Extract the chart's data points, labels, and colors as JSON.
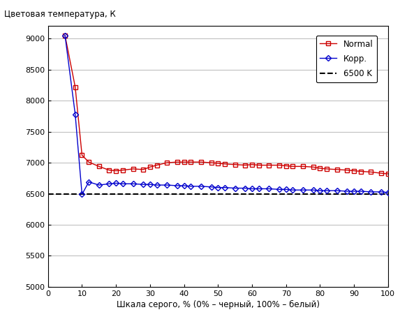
{
  "title": "Цветовая температура, К",
  "title_x": "Шкала серого, % (0% – черный, 100% – белый)",
  "ylim": [
    5000,
    9200
  ],
  "xlim": [
    0,
    100
  ],
  "yticks": [
    5000,
    5500,
    6000,
    6500,
    7000,
    7500,
    8000,
    8500,
    9000
  ],
  "xticks": [
    0,
    10,
    20,
    30,
    40,
    50,
    60,
    70,
    80,
    90,
    100
  ],
  "ref_line": 6500,
  "normal_x": [
    5,
    8,
    10,
    12,
    15,
    18,
    20,
    22,
    25,
    28,
    30,
    32,
    35,
    38,
    40,
    42,
    45,
    48,
    50,
    52,
    55,
    58,
    60,
    62,
    65,
    68,
    70,
    72,
    75,
    78,
    80,
    82,
    85,
    88,
    90,
    92,
    95,
    98,
    100
  ],
  "normal_y": [
    9050,
    8220,
    7120,
    7010,
    6940,
    6880,
    6870,
    6880,
    6900,
    6890,
    6930,
    6960,
    7000,
    7010,
    7010,
    7010,
    7010,
    7000,
    6990,
    6980,
    6970,
    6960,
    6970,
    6960,
    6960,
    6960,
    6950,
    6940,
    6940,
    6930,
    6910,
    6900,
    6890,
    6880,
    6870,
    6860,
    6850,
    6830,
    6820
  ],
  "corr_x": [
    5,
    8,
    10,
    12,
    15,
    18,
    20,
    22,
    25,
    28,
    30,
    32,
    35,
    38,
    40,
    42,
    45,
    48,
    50,
    52,
    55,
    58,
    60,
    62,
    65,
    68,
    70,
    72,
    75,
    78,
    80,
    82,
    85,
    88,
    90,
    92,
    95,
    98,
    100
  ],
  "corr_y": [
    9050,
    7780,
    6490,
    6690,
    6640,
    6660,
    6670,
    6660,
    6660,
    6650,
    6650,
    6640,
    6640,
    6630,
    6630,
    6620,
    6620,
    6610,
    6600,
    6600,
    6590,
    6590,
    6580,
    6580,
    6580,
    6570,
    6570,
    6560,
    6560,
    6560,
    6550,
    6550,
    6550,
    6540,
    6540,
    6540,
    6530,
    6530,
    6520
  ],
  "normal_color": "#cc0000",
  "corr_color": "#0000cc",
  "ref_color": "#000000",
  "legend_labels": [
    "Normal",
    "Корр.",
    "6500 K"
  ],
  "bg_color": "#ffffff",
  "grid_color": "#c0c0c0"
}
